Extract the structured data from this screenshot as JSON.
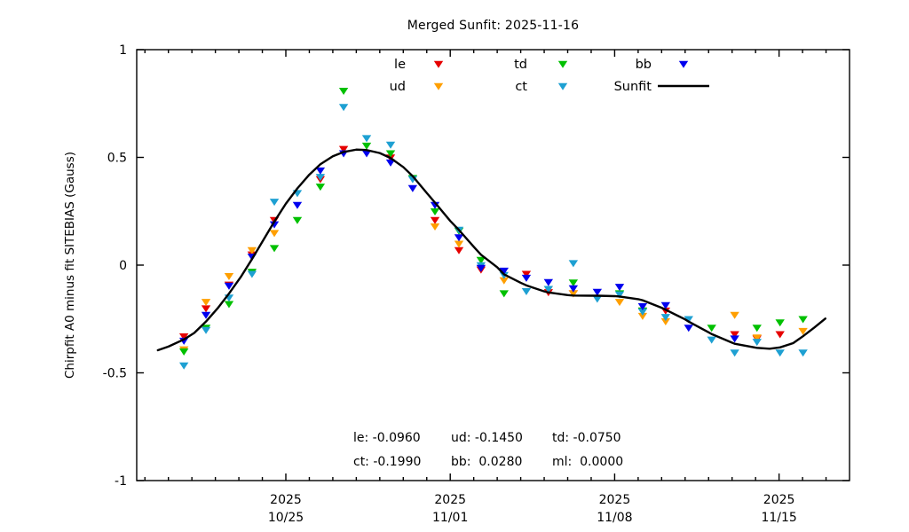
{
  "title": "Merged Sunfit: 2025-11-16",
  "ylabel": "Chirpfit A0 minus fit SITEBIAS (Gauss)",
  "annotation": {
    "rows": [
      {
        "cells": [
          "le: -0.0960",
          "ud: -0.1450",
          "td: -0.0750"
        ]
      },
      {
        "cells": [
          "ct: -0.1990",
          "bb:  0.0280",
          "ml:  0.0000"
        ]
      }
    ]
  },
  "chart_data": {
    "type": "scatter",
    "title": "Merged Sunfit: 2025-11-16",
    "xlabel": "",
    "ylabel": "Chirpfit A0 minus fit SITEBIAS (Gauss)",
    "ylim": [
      -1,
      1
    ],
    "xlim_days": [
      -6.35,
      24
    ],
    "x_unit": "days since 2025-10-25",
    "grid": false,
    "legend_position": "top-center-inside",
    "y_ticks": [
      {
        "v": 1,
        "label": "1"
      },
      {
        "v": 0.5,
        "label": "0.5"
      },
      {
        "v": 0,
        "label": "0"
      },
      {
        "v": -0.5,
        "label": "-0.5"
      },
      {
        "v": -1,
        "label": "-1"
      }
    ],
    "x_major_ticks": [
      {
        "d": 0,
        "line1": "2025",
        "line2": "10/25"
      },
      {
        "d": 7,
        "line1": "2025",
        "line2": "11/01"
      },
      {
        "d": 14,
        "line1": "2025",
        "line2": "11/08"
      },
      {
        "d": 21,
        "line1": "2025",
        "line2": "11/15"
      }
    ],
    "x_minor_tick_days": [
      -6,
      -5,
      -4,
      -3,
      -2,
      -1,
      1,
      2,
      3,
      4,
      5,
      6,
      8,
      9,
      10,
      11,
      12,
      13,
      15,
      16,
      17,
      18,
      19,
      20,
      22,
      23
    ],
    "legend": {
      "entries": [
        {
          "label": "le",
          "type": "marker",
          "color": "#e60000"
        },
        {
          "label": "ud",
          "type": "marker",
          "color": "#ff9f00"
        },
        {
          "label": "td",
          "type": "marker",
          "color": "#00c000"
        },
        {
          "label": "ct",
          "type": "marker",
          "color": "#1ea0d2"
        },
        {
          "label": "bb",
          "type": "marker",
          "color": "#0000ee"
        },
        {
          "label": "Sunfit",
          "type": "line",
          "color": "#000000"
        }
      ]
    },
    "marker": "triangle-down",
    "series": [
      {
        "name": "le",
        "color": "#e60000",
        "points": [
          [
            -4.34,
            -0.33
          ],
          [
            -3.4,
            -0.2
          ],
          [
            -2.42,
            -0.09
          ],
          [
            -1.44,
            0.05
          ],
          [
            -0.49,
            0.21
          ],
          [
            1.47,
            0.4
          ],
          [
            2.46,
            0.54
          ],
          [
            4.46,
            0.5
          ],
          [
            6.35,
            0.21
          ],
          [
            7.37,
            0.07
          ],
          [
            8.31,
            -0.02
          ],
          [
            10.24,
            -0.04
          ],
          [
            11.18,
            -0.125
          ],
          [
            12.24,
            -0.13
          ],
          [
            15.19,
            -0.21
          ],
          [
            16.17,
            -0.21
          ],
          [
            19.11,
            -0.32
          ],
          [
            20.06,
            -0.34
          ],
          [
            21.04,
            -0.32
          ]
        ]
      },
      {
        "name": "ud",
        "color": "#ff9f00",
        "points": [
          [
            -4.34,
            -0.39
          ],
          [
            -3.4,
            -0.17
          ],
          [
            -2.42,
            -0.05
          ],
          [
            -1.44,
            0.07
          ],
          [
            -0.49,
            0.15
          ],
          [
            6.35,
            0.18
          ],
          [
            7.37,
            0.1
          ],
          [
            9.29,
            -0.07
          ],
          [
            11.18,
            -0.11
          ],
          [
            12.24,
            -0.13
          ],
          [
            14.21,
            -0.17
          ],
          [
            15.19,
            -0.235
          ],
          [
            16.17,
            -0.26
          ],
          [
            19.11,
            -0.23
          ],
          [
            20.06,
            -0.335
          ],
          [
            22.02,
            -0.305
          ]
        ]
      },
      {
        "name": "td",
        "color": "#00c000",
        "points": [
          [
            -4.34,
            -0.4
          ],
          [
            -3.4,
            -0.29
          ],
          [
            -2.42,
            -0.18
          ],
          [
            -1.44,
            -0.03
          ],
          [
            -0.49,
            0.08
          ],
          [
            0.49,
            0.21
          ],
          [
            1.47,
            0.365
          ],
          [
            2.46,
            0.81
          ],
          [
            3.44,
            0.555
          ],
          [
            4.46,
            0.52
          ],
          [
            5.4,
            0.405
          ],
          [
            6.35,
            0.25
          ],
          [
            7.37,
            0.16
          ],
          [
            8.31,
            0.025
          ],
          [
            9.29,
            -0.13
          ],
          [
            12.24,
            -0.08
          ],
          [
            14.21,
            -0.13
          ],
          [
            15.19,
            -0.21
          ],
          [
            18.13,
            -0.29
          ],
          [
            20.06,
            -0.29
          ],
          [
            21.04,
            -0.265
          ],
          [
            22.02,
            -0.25
          ]
        ]
      },
      {
        "name": "ct",
        "color": "#1ea0d2",
        "points": [
          [
            -4.34,
            -0.465
          ],
          [
            -3.4,
            -0.3
          ],
          [
            -2.42,
            -0.15
          ],
          [
            -1.44,
            -0.04
          ],
          [
            -0.49,
            0.295
          ],
          [
            0.49,
            0.335
          ],
          [
            1.47,
            0.41
          ],
          [
            2.46,
            0.735
          ],
          [
            3.44,
            0.59
          ],
          [
            4.46,
            0.56
          ],
          [
            5.4,
            0.4
          ],
          [
            7.37,
            0.165
          ],
          [
            8.31,
            0.0
          ],
          [
            9.29,
            -0.045
          ],
          [
            10.24,
            -0.12
          ],
          [
            11.18,
            -0.11
          ],
          [
            12.24,
            0.01
          ],
          [
            13.26,
            -0.155
          ],
          [
            14.21,
            -0.135
          ],
          [
            15.19,
            -0.215
          ],
          [
            16.17,
            -0.24
          ],
          [
            17.15,
            -0.25
          ],
          [
            18.13,
            -0.345
          ],
          [
            19.11,
            -0.405
          ],
          [
            20.06,
            -0.355
          ],
          [
            21.04,
            -0.405
          ],
          [
            22.02,
            -0.405
          ]
        ]
      },
      {
        "name": "bb",
        "color": "#0000ee",
        "points": [
          [
            -4.34,
            -0.35
          ],
          [
            -3.4,
            -0.23
          ],
          [
            -2.42,
            -0.095
          ],
          [
            -1.44,
            0.04
          ],
          [
            -0.49,
            0.19
          ],
          [
            0.49,
            0.28
          ],
          [
            1.47,
            0.44
          ],
          [
            2.46,
            0.52
          ],
          [
            3.44,
            0.52
          ],
          [
            4.46,
            0.477
          ],
          [
            5.4,
            0.358
          ],
          [
            6.35,
            0.28
          ],
          [
            7.37,
            0.13
          ],
          [
            8.31,
            -0.012
          ],
          [
            9.29,
            -0.025
          ],
          [
            10.24,
            -0.058
          ],
          [
            11.18,
            -0.078
          ],
          [
            12.24,
            -0.107
          ],
          [
            13.26,
            -0.123
          ],
          [
            14.21,
            -0.1
          ],
          [
            15.19,
            -0.19
          ],
          [
            16.17,
            -0.185
          ],
          [
            17.15,
            -0.29
          ],
          [
            19.11,
            -0.34
          ]
        ]
      }
    ],
    "fit_line": {
      "name": "Sunfit",
      "color": "#000000",
      "points": [
        [
          -5.45,
          -0.395
        ],
        [
          -5,
          -0.378
        ],
        [
          -4.34,
          -0.345
        ],
        [
          -3.9,
          -0.315
        ],
        [
          -3.4,
          -0.262
        ],
        [
          -2.9,
          -0.2
        ],
        [
          -2.42,
          -0.132
        ],
        [
          -1.9,
          -0.052
        ],
        [
          -1.44,
          0.028
        ],
        [
          -0.95,
          0.118
        ],
        [
          -0.49,
          0.202
        ],
        [
          0,
          0.285
        ],
        [
          0.49,
          0.356
        ],
        [
          1,
          0.42
        ],
        [
          1.47,
          0.468
        ],
        [
          2,
          0.505
        ],
        [
          2.46,
          0.525
        ],
        [
          3,
          0.536
        ],
        [
          3.44,
          0.534
        ],
        [
          4,
          0.52
        ],
        [
          4.46,
          0.497
        ],
        [
          5,
          0.455
        ],
        [
          5.4,
          0.413
        ],
        [
          6,
          0.335
        ],
        [
          6.35,
          0.29
        ],
        [
          7,
          0.205
        ],
        [
          7.37,
          0.163
        ],
        [
          8,
          0.085
        ],
        [
          8.31,
          0.048
        ],
        [
          9,
          -0.01
        ],
        [
          9.29,
          -0.043
        ],
        [
          10,
          -0.082
        ],
        [
          10.24,
          -0.094
        ],
        [
          11,
          -0.122
        ],
        [
          11.18,
          -0.127
        ],
        [
          12,
          -0.139
        ],
        [
          12.24,
          -0.141
        ],
        [
          13,
          -0.142
        ],
        [
          13.26,
          -0.142
        ],
        [
          14,
          -0.144
        ],
        [
          14.21,
          -0.146
        ],
        [
          15,
          -0.158
        ],
        [
          15.19,
          -0.163
        ],
        [
          16,
          -0.198
        ],
        [
          16.17,
          -0.207
        ],
        [
          17,
          -0.252
        ],
        [
          17.15,
          -0.262
        ],
        [
          18,
          -0.312
        ],
        [
          18.13,
          -0.32
        ],
        [
          19,
          -0.36
        ],
        [
          19.11,
          -0.365
        ],
        [
          20,
          -0.383
        ],
        [
          20.06,
          -0.384
        ],
        [
          20.6,
          -0.388
        ],
        [
          21.04,
          -0.382
        ],
        [
          21.6,
          -0.362
        ],
        [
          22.02,
          -0.33
        ],
        [
          22.5,
          -0.29
        ],
        [
          22.97,
          -0.248
        ]
      ]
    },
    "site_offsets": {
      "le": -0.096,
      "ud": -0.145,
      "td": -0.075,
      "ct": -0.199,
      "bb": 0.028,
      "ml": 0.0
    }
  }
}
